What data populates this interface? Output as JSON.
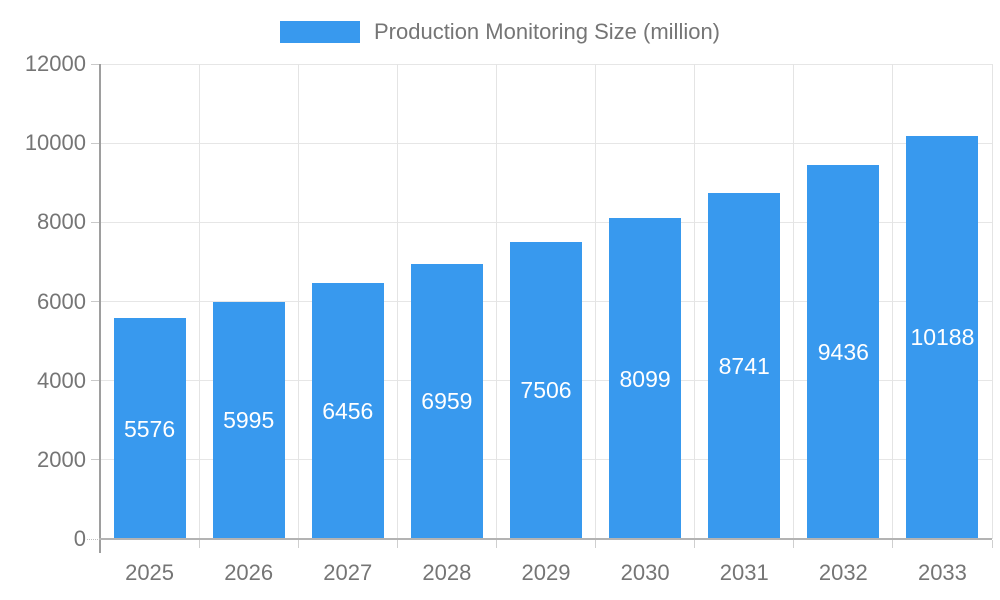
{
  "chart_data": {
    "type": "bar",
    "title": "",
    "series_name": "Production Monitoring Size (million)",
    "categories": [
      "2025",
      "2026",
      "2027",
      "2028",
      "2029",
      "2030",
      "2031",
      "2032",
      "2033"
    ],
    "values": [
      5576,
      5995,
      6456,
      6959,
      7506,
      8099,
      8741,
      9436,
      10188
    ],
    "xlabel": "",
    "ylabel": "",
    "ylim": [
      0,
      12000
    ],
    "yticks": [
      0,
      2000,
      4000,
      6000,
      8000,
      10000,
      12000
    ],
    "grid": true,
    "legend_position": "top",
    "colors": {
      "bar": "#3899EE",
      "bar_label": "#FFFFFF",
      "axis_text": "#757575",
      "grid_line": "#E6E6E6",
      "axis_line": "#B3B3B3"
    }
  }
}
